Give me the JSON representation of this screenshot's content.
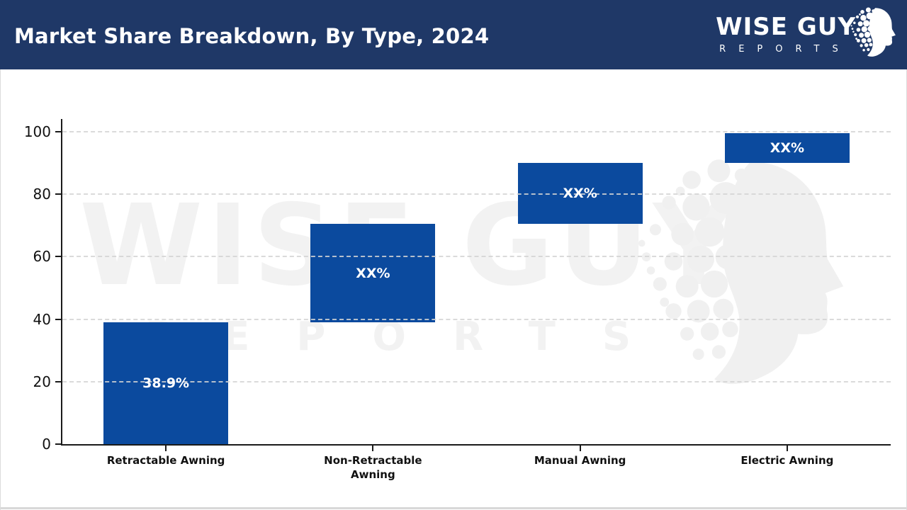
{
  "header": {
    "title": "Market Share Breakdown, By Type, 2024",
    "brand": {
      "name_line": "WISE GUY",
      "sub_line": "REPORTS"
    }
  },
  "watermark": {
    "line1": "WISE GUY",
    "line2": "REPORTS"
  },
  "chart_data": {
    "type": "bar",
    "subtype": "waterfall",
    "title": "Market Share Breakdown, By Type, 2024",
    "categories": [
      "Retractable Awning",
      "Non-Retractable Awning",
      "Manual Awning",
      "Electric Awning"
    ],
    "segments": [
      {
        "category": "Retractable Awning",
        "start": 0,
        "end": 38.9,
        "label": "38.9%"
      },
      {
        "category": "Non-Retractable Awning",
        "start": 38.9,
        "end": 70.5,
        "label": "XX%"
      },
      {
        "category": "Manual Awning",
        "start": 70.5,
        "end": 90,
        "label": "XX%"
      },
      {
        "category": "Electric Awning",
        "start": 90,
        "end": 99.5,
        "label": "XX%"
      }
    ],
    "xlabel": "",
    "ylabel": "",
    "ylim": [
      0,
      104
    ],
    "y_ticks": [
      0,
      20,
      40,
      60,
      80,
      100
    ],
    "grid": "horizontal-dashed",
    "legend": "none",
    "bar_color": "#0b4a9e",
    "bar_label_color": "#ffffff"
  },
  "colors": {
    "header_bg": "#1f3867",
    "bar": "#0b4a9e",
    "grid": "#d8d8d8",
    "axis": "#1a1a1a",
    "watermark": "#f2f2f2",
    "page_bg": "#ffffff"
  }
}
